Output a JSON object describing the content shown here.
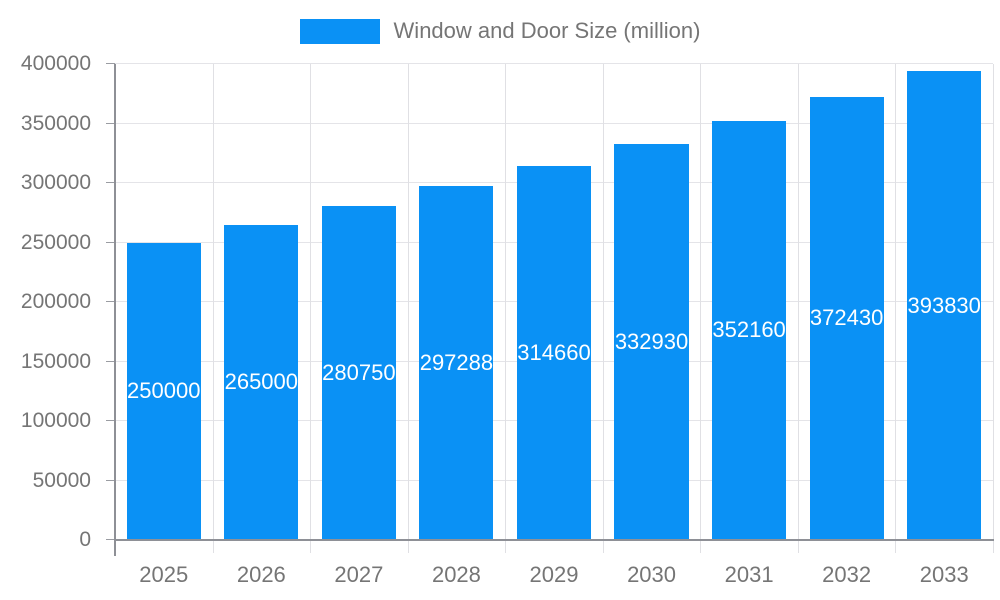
{
  "chart_data": {
    "type": "bar",
    "title": "Window and Door Size (million)",
    "categories": [
      "2025",
      "2026",
      "2027",
      "2028",
      "2029",
      "2030",
      "2031",
      "2032",
      "2033"
    ],
    "values": [
      250000,
      265000,
      280750,
      297288,
      314660,
      332930,
      352160,
      372430,
      393830
    ],
    "value_labels": [
      "250000",
      "265000",
      "280750",
      "297288",
      "314660",
      "332930",
      "352160",
      "372430",
      "393830"
    ],
    "yticks": [
      0,
      50000,
      100000,
      150000,
      200000,
      250000,
      300000,
      350000,
      400000
    ],
    "ytick_labels": [
      "0",
      "50000",
      "100000",
      "150000",
      "200000",
      "250000",
      "300000",
      "350000",
      "400000"
    ],
    "ylim": [
      0,
      400000
    ],
    "xlabel": "",
    "ylabel": "",
    "grid": true,
    "legend_position": "top-center",
    "bar_color": "#0a91f5",
    "value_label_color": "#ffffff",
    "axis_text_color": "#757575",
    "axis_line_color": "#8e9096",
    "gridline_color": "#e4e4e8",
    "background_color": "#ffffff"
  }
}
